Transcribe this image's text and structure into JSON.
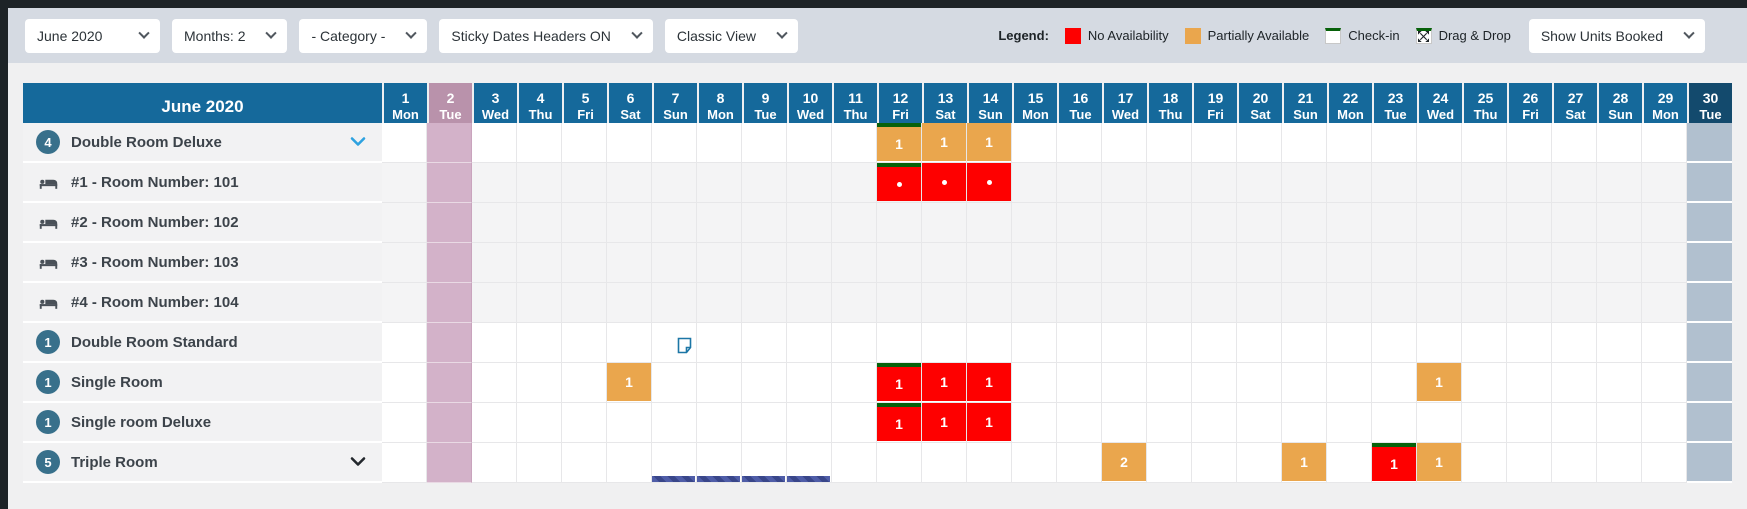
{
  "toolbar": {
    "month_select": "June 2020",
    "months_select": "Months: 2",
    "category_select": "- Category -",
    "sticky_select": "Sticky Dates Headers ON",
    "view_select": "Classic View",
    "units_select": "Show Units Booked",
    "legend": {
      "label": "Legend:",
      "items": [
        {
          "label": "No Availability",
          "color": "#fe0000"
        },
        {
          "label": "Partially Available",
          "color": "#eaa64d"
        },
        {
          "label": "Check-in",
          "color": "#ffffff",
          "border_top": "#07610a"
        },
        {
          "label": "Drag & Drop",
          "icon": "drag-icon"
        }
      ]
    }
  },
  "calendar": {
    "title": "June 2020",
    "highlight_day": 2,
    "last_day": 30,
    "days": [
      {
        "num": "1",
        "dow": "Mon"
      },
      {
        "num": "2",
        "dow": "Tue"
      },
      {
        "num": "3",
        "dow": "Wed"
      },
      {
        "num": "4",
        "dow": "Thu"
      },
      {
        "num": "5",
        "dow": "Fri"
      },
      {
        "num": "6",
        "dow": "Sat"
      },
      {
        "num": "7",
        "dow": "Sun"
      },
      {
        "num": "8",
        "dow": "Mon"
      },
      {
        "num": "9",
        "dow": "Tue"
      },
      {
        "num": "10",
        "dow": "Wed"
      },
      {
        "num": "11",
        "dow": "Thu"
      },
      {
        "num": "12",
        "dow": "Fri"
      },
      {
        "num": "13",
        "dow": "Sat"
      },
      {
        "num": "14",
        "dow": "Sun"
      },
      {
        "num": "15",
        "dow": "Mon"
      },
      {
        "num": "16",
        "dow": "Tue"
      },
      {
        "num": "17",
        "dow": "Wed"
      },
      {
        "num": "18",
        "dow": "Thu"
      },
      {
        "num": "19",
        "dow": "Fri"
      },
      {
        "num": "20",
        "dow": "Sat"
      },
      {
        "num": "21",
        "dow": "Sun"
      },
      {
        "num": "22",
        "dow": "Mon"
      },
      {
        "num": "23",
        "dow": "Tue"
      },
      {
        "num": "24",
        "dow": "Wed"
      },
      {
        "num": "25",
        "dow": "Thu"
      },
      {
        "num": "26",
        "dow": "Fri"
      },
      {
        "num": "27",
        "dow": "Sat"
      },
      {
        "num": "28",
        "dow": "Sun"
      },
      {
        "num": "29",
        "dow": "Mon"
      },
      {
        "num": "30",
        "dow": "Tue"
      }
    ],
    "rows": [
      {
        "kind": "category",
        "badge": "4",
        "label": "Double Room Deluxe",
        "expand": "blue",
        "cells": [
          {
            "day": 12,
            "color": "orange",
            "text": "1",
            "checkin": true
          },
          {
            "day": 13,
            "color": "orange",
            "text": "1"
          },
          {
            "day": 14,
            "color": "orange",
            "text": "1"
          }
        ]
      },
      {
        "kind": "unit",
        "label": "#1 - Room Number: 101",
        "cells": [
          {
            "day": 12,
            "color": "red",
            "dot": true,
            "checkin": true
          },
          {
            "day": 13,
            "color": "red",
            "dot": true
          },
          {
            "day": 14,
            "color": "red",
            "dot": true
          }
        ]
      },
      {
        "kind": "unit",
        "label": "#2 - Room Number: 102",
        "cells": []
      },
      {
        "kind": "unit",
        "label": "#3 - Room Number: 103",
        "cells": []
      },
      {
        "kind": "unit",
        "label": "#4 - Room Number: 104",
        "cells": []
      },
      {
        "kind": "category",
        "badge": "1",
        "label": "Double Room Standard",
        "note_day": 7,
        "cells": []
      },
      {
        "kind": "category",
        "badge": "1",
        "label": "Single Room",
        "cells": [
          {
            "day": 6,
            "color": "orange",
            "text": "1"
          },
          {
            "day": 12,
            "color": "red",
            "text": "1",
            "checkin": true
          },
          {
            "day": 13,
            "color": "red",
            "text": "1"
          },
          {
            "day": 14,
            "color": "red",
            "text": "1"
          },
          {
            "day": 24,
            "color": "orange",
            "text": "1"
          }
        ]
      },
      {
        "kind": "category",
        "badge": "1",
        "label": "Single room Deluxe",
        "cells": [
          {
            "day": 12,
            "color": "red",
            "text": "1",
            "checkin": true
          },
          {
            "day": 13,
            "color": "red",
            "text": "1"
          },
          {
            "day": 14,
            "color": "red",
            "text": "1"
          }
        ]
      },
      {
        "kind": "category",
        "badge": "5",
        "label": "Triple Room",
        "expand": "dark",
        "cells": [
          {
            "day": 17,
            "color": "orange",
            "text": "2"
          },
          {
            "day": 21,
            "color": "orange",
            "text": "1"
          },
          {
            "day": 23,
            "color": "red",
            "text": "1",
            "checkin": true
          },
          {
            "day": 24,
            "color": "orange",
            "text": "1"
          }
        ]
      }
    ],
    "partial_next_row_days": [
      7,
      8,
      9,
      10
    ]
  },
  "colors": {
    "header_blue": "#15699b",
    "header_last_day": "#134a6d",
    "selected_day_header": "#b992ab",
    "selected_day_cell": "#d3b2c9",
    "last_day_cell": "#b1c0cf",
    "no_availability": "#fe0000",
    "partially_available": "#eaa64d",
    "checkin_border": "#07610a",
    "badge": "#38708b",
    "booking_stripe": "#4f5da8"
  }
}
